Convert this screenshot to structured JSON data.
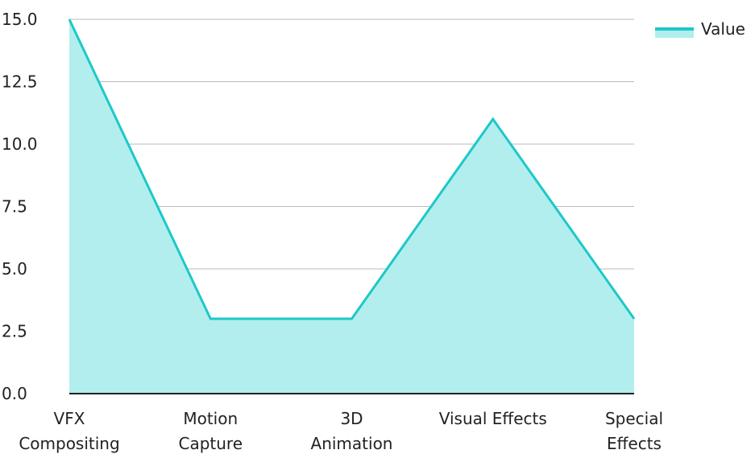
{
  "chart_data": {
    "type": "area",
    "categories": [
      [
        "VFX",
        "Compositing"
      ],
      [
        "Motion",
        "Capture"
      ],
      [
        "3D",
        "Animation"
      ],
      [
        "Visual Effects"
      ],
      [
        "Special",
        "Effects"
      ]
    ],
    "series": [
      {
        "name": "Value",
        "values": [
          15,
          3,
          3,
          11,
          3
        ],
        "line_color": "#1ec8c8",
        "fill_color": "#b2eeee"
      }
    ],
    "ylim": [
      0,
      15
    ],
    "yticks": [
      "0.0",
      "2.5",
      "5.0",
      "7.5",
      "10.0",
      "12.5",
      "15.0"
    ],
    "xlabel": "",
    "ylabel": "",
    "grid": true,
    "gridline_color": "#bbbbbb",
    "axis_color": "#222222",
    "legend_position": "top-right"
  }
}
